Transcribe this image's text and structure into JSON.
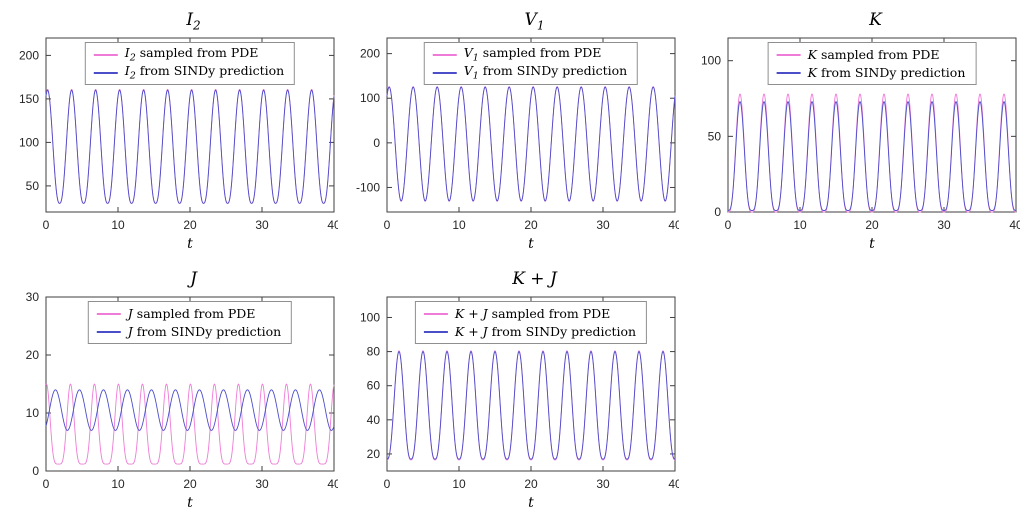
{
  "figure": {
    "background": "#ffffff",
    "colors": {
      "pde": "#ef7bd8",
      "sindy": "#4b4ec9",
      "axis": "#3f3f3f"
    }
  },
  "chart_data": [
    {
      "type": "line",
      "title_math": "I_2",
      "xlabel_math": "t",
      "xlim": [
        0,
        40
      ],
      "xticks": [
        0,
        10,
        20,
        30,
        40
      ],
      "ylim": [
        20,
        220
      ],
      "yticks": [
        50,
        100,
        150,
        200
      ],
      "grid": false,
      "legend_position": "top-center",
      "series": [
        {
          "legend_math": "I_2",
          "legend_text": "sampled from PDE",
          "color": "#ef7bd8",
          "wave": {
            "min": 30,
            "max": 161,
            "period": 3.3333,
            "phase": 1.15,
            "power": 1.25
          }
        },
        {
          "legend_math": "I_2",
          "legend_text": "from SINDy prediction",
          "color": "#4b4ec9",
          "wave": {
            "min": 30,
            "max": 160,
            "period": 3.3333,
            "phase": 1.15,
            "power": 1.25
          }
        }
      ]
    },
    {
      "type": "line",
      "title_math": "V_1",
      "xlabel_math": "t",
      "xlim": [
        0,
        40
      ],
      "xticks": [
        0,
        10,
        20,
        30,
        40
      ],
      "ylim": [
        -155,
        235
      ],
      "yticks": [
        -100,
        0,
        100,
        200
      ],
      "grid": false,
      "legend_position": "top-center",
      "series": [
        {
          "legend_math": "V_1",
          "legend_text": "sampled from PDE",
          "color": "#ef7bd8",
          "wave": {
            "min": -131,
            "max": 126,
            "period": 3.3333,
            "phase": 1.0,
            "power": 1.0
          }
        },
        {
          "legend_math": "V_1",
          "legend_text": "from SINDy prediction",
          "color": "#4b4ec9",
          "wave": {
            "min": -130,
            "max": 125,
            "period": 3.3333,
            "phase": 1.0,
            "power": 1.0
          }
        }
      ]
    },
    {
      "type": "line",
      "title_math": "K",
      "xlabel_math": "t",
      "xlim": [
        0,
        40
      ],
      "xticks": [
        0,
        10,
        20,
        30,
        40
      ],
      "ylim": [
        0,
        115
      ],
      "yticks": [
        0,
        50,
        100
      ],
      "grid": false,
      "legend_position": "top-center",
      "series": [
        {
          "legend_math": "K",
          "legend_text": "sampled from PDE",
          "color": "#ef7bd8",
          "wave": {
            "min": 0,
            "max": 78,
            "period": 3.3333,
            "phase": -1.5708,
            "power": 1.7
          }
        },
        {
          "legend_math": "K",
          "legend_text": "from SINDy prediction",
          "color": "#4b4ec9",
          "wave": {
            "min": 1,
            "max": 73,
            "period": 3.3333,
            "phase": -1.5708,
            "power": 1.7
          }
        }
      ]
    },
    {
      "type": "line",
      "title_math": "J",
      "xlabel_math": "t",
      "xlim": [
        0,
        40
      ],
      "xticks": [
        0,
        10,
        20,
        30,
        40
      ],
      "ylim": [
        0,
        30
      ],
      "yticks": [
        0,
        10,
        20,
        30
      ],
      "grid": false,
      "legend_position": "top-center",
      "series": [
        {
          "legend_math": "J",
          "legend_text": "sampled from PDE",
          "color": "#ef7bd8",
          "wave": {
            "min": 1.2,
            "max": 15,
            "period": 3.3333,
            "phase": 1.45,
            "power": 2.4
          }
        },
        {
          "legend_math": "J",
          "legend_text": "from SINDy prediction",
          "color": "#4b4ec9",
          "wave": {
            "min": 7,
            "max": 14,
            "period": 3.3333,
            "phase": -0.9,
            "power": 1.0
          }
        }
      ]
    },
    {
      "type": "line",
      "title_math": "K + J",
      "xlabel_math": "t",
      "xlim": [
        0,
        40
      ],
      "xticks": [
        0,
        10,
        20,
        30,
        40
      ],
      "ylim": [
        10,
        112
      ],
      "yticks": [
        20,
        40,
        60,
        80,
        100
      ],
      "grid": false,
      "legend_position": "top-center",
      "series": [
        {
          "legend_math": "K + J",
          "legend_text": "sampled from PDE",
          "color": "#ef7bd8",
          "wave": {
            "min": 16.5,
            "max": 80.5,
            "period": 3.3333,
            "phase": -1.5708,
            "power": 1.35
          }
        },
        {
          "legend_math": "K + J",
          "legend_text": "from SINDy prediction",
          "color": "#4b4ec9",
          "wave": {
            "min": 17,
            "max": 80,
            "period": 3.3333,
            "phase": -1.5708,
            "power": 1.35
          }
        }
      ]
    }
  ]
}
